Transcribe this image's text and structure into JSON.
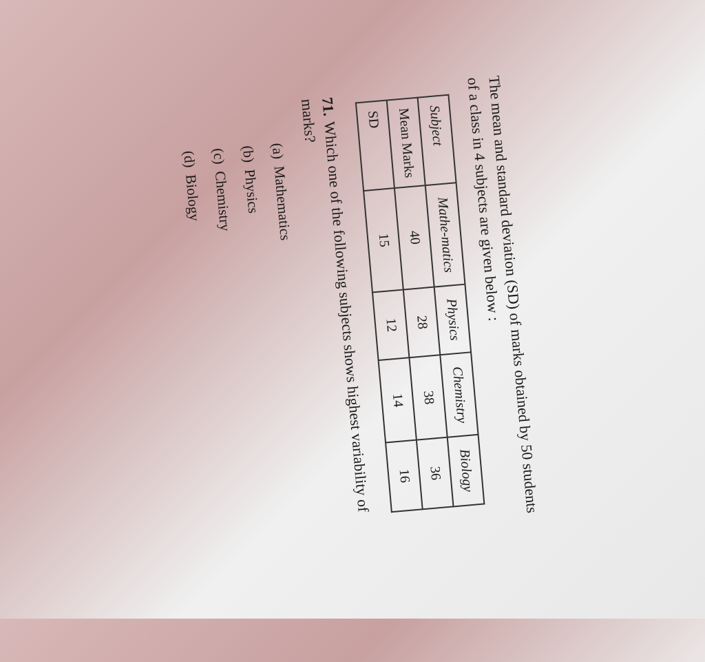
{
  "intro": "The mean and standard deviation (SD) of marks obtained by 50 students of a class in 4 subjects are given below :",
  "table": {
    "headers": {
      "subject": "Subject",
      "col1": "Mathe-matics",
      "col2": "Physics",
      "col3": "Chemistry",
      "col4": "Biology"
    },
    "rows": [
      {
        "label": "Mean Marks",
        "values": [
          "40",
          "28",
          "38",
          "36"
        ]
      },
      {
        "label": "SD",
        "values": [
          "15",
          "12",
          "14",
          "16"
        ]
      }
    ]
  },
  "question": {
    "number": "71.",
    "text": "Which one of the following subjects shows highest variability of marks?"
  },
  "options": [
    {
      "letter": "(a)",
      "text": "Mathematics"
    },
    {
      "letter": "(b)",
      "text": "Physics"
    },
    {
      "letter": "(c)",
      "text": "Chemistry"
    },
    {
      "letter": "(d)",
      "text": "Biology"
    }
  ],
  "styling": {
    "text_color": "#1a1a1a",
    "border_color": "#333333",
    "font_family": "Georgia, serif",
    "intro_fontsize": 22,
    "table_fontsize": 20,
    "question_fontsize": 22,
    "option_fontsize": 21
  }
}
